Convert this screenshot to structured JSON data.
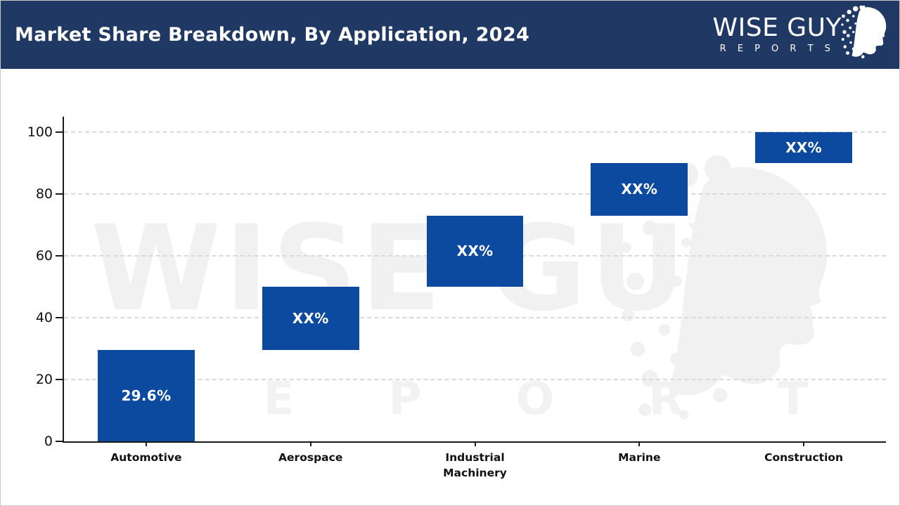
{
  "header": {
    "title": "Market Share Breakdown, By Application, 2024",
    "bg_color": "#1f3864",
    "logo": {
      "wordmark": "WISE GUY",
      "subtext": "R E P O R T S"
    }
  },
  "watermark": {
    "wordmark": "WISE GUY",
    "subtext": "R E P O R T S"
  },
  "chart_data": {
    "type": "bar",
    "subtype": "waterfall",
    "title": "Market Share Breakdown, By Application, 2024",
    "categories": [
      "Automotive",
      "Aerospace",
      "Industrial\nMachinery",
      "Marine",
      "Construction"
    ],
    "segments": [
      {
        "category": "Automotive",
        "start": 0,
        "end": 29.6,
        "label": "29.6%"
      },
      {
        "category": "Aerospace",
        "start": 29.6,
        "end": 50,
        "label": "XX%"
      },
      {
        "category": "Industrial\nMachinery",
        "start": 50,
        "end": 73,
        "label": "XX%"
      },
      {
        "category": "Marine",
        "start": 73,
        "end": 90,
        "label": "XX%"
      },
      {
        "category": "Construction",
        "start": 90,
        "end": 100,
        "label": "XX%"
      }
    ],
    "xlabel": "",
    "ylabel": "",
    "yticks": [
      0,
      20,
      40,
      60,
      80,
      100
    ],
    "ylim": [
      0,
      105
    ],
    "grid": "horizontal-dashed",
    "legend": "none",
    "bar_color": "#0b4a9f",
    "bar_label_color": "#ffffff",
    "axis_color": "#1a1a1a",
    "grid_color": "#dadada"
  }
}
